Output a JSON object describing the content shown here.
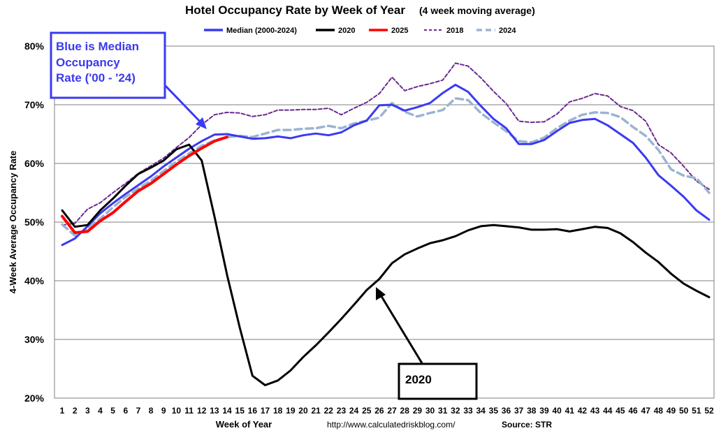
{
  "chart_data": {
    "type": "line",
    "title": "Hotel Occupancy Rate by  Week of Year",
    "subtitle": "(4 week moving average)",
    "xlabel": "Week of Year",
    "ylabel": "4-Week Average Occupancy Rate",
    "ylim": [
      20,
      80
    ],
    "yticks": [
      "20%",
      "30%",
      "40%",
      "50%",
      "60%",
      "70%",
      "80%"
    ],
    "x": [
      1,
      2,
      3,
      4,
      5,
      6,
      7,
      8,
      9,
      10,
      11,
      12,
      13,
      14,
      15,
      16,
      17,
      18,
      19,
      20,
      21,
      22,
      23,
      24,
      25,
      26,
      27,
      28,
      29,
      30,
      31,
      32,
      33,
      34,
      35,
      36,
      37,
      38,
      39,
      40,
      41,
      42,
      43,
      44,
      45,
      46,
      47,
      48,
      49,
      50,
      51,
      52
    ],
    "grid": true,
    "legend_position": "top",
    "series": [
      {
        "name": "Median (2000-2024)",
        "color": "#3a3af0",
        "style": "solid",
        "values": [
          46.1,
          47.2,
          49.3,
          51.5,
          53.2,
          54.8,
          56.3,
          57.8,
          59.5,
          61.0,
          62.5,
          63.8,
          64.9,
          65.0,
          64.6,
          64.2,
          64.3,
          64.6,
          64.3,
          64.8,
          65.1,
          64.8,
          65.3,
          66.5,
          67.3,
          69.9,
          70.0,
          69.0,
          69.6,
          70.3,
          72.0,
          73.4,
          72.2,
          69.8,
          67.6,
          66.0,
          63.3,
          63.3,
          64.0,
          65.5,
          66.9,
          67.4,
          67.6,
          66.5,
          65.0,
          63.5,
          61.0,
          58.0,
          56.2,
          54.3,
          52.0,
          50.4
        ]
      },
      {
        "name": "2020",
        "color": "#000000",
        "style": "solid",
        "values": [
          52.0,
          49.2,
          49.5,
          52.0,
          54.0,
          56.2,
          58.2,
          59.3,
          60.5,
          62.4,
          63.2,
          60.5,
          51.0,
          41.0,
          32.0,
          23.8,
          22.2,
          23.0,
          24.7,
          27.0,
          29.0,
          31.2,
          33.5,
          35.9,
          38.4,
          40.3,
          43.0,
          44.5,
          45.5,
          46.4,
          46.9,
          47.6,
          48.6,
          49.3,
          49.5,
          49.3,
          49.1,
          48.7,
          48.7,
          48.8,
          48.4,
          48.8,
          49.2,
          49.0,
          48.1,
          46.6,
          44.8,
          43.2,
          41.2,
          39.5,
          38.3,
          37.2
        ]
      },
      {
        "name": "2025",
        "color": "#ff0000",
        "style": "solid",
        "values": [
          51.0,
          48.2,
          48.4,
          50.2,
          51.6,
          53.5,
          55.3,
          56.6,
          58.2,
          59.8,
          61.3,
          62.6,
          63.8,
          64.5,
          null,
          null,
          null,
          null,
          null,
          null,
          null,
          null,
          null,
          null,
          null,
          null,
          null,
          null,
          null,
          null,
          null,
          null,
          null,
          null,
          null,
          null,
          null,
          null,
          null,
          null,
          null,
          null,
          null,
          null,
          null,
          null,
          null,
          null,
          null,
          null,
          null,
          null
        ]
      },
      {
        "name": "2018",
        "color": "#6a2a90",
        "style": "dashed",
        "values": [
          49.5,
          49.8,
          52.2,
          53.3,
          55.0,
          56.6,
          58.3,
          59.6,
          60.9,
          62.7,
          64.4,
          66.6,
          68.3,
          68.7,
          68.6,
          68.0,
          68.3,
          69.1,
          69.1,
          69.2,
          69.2,
          69.4,
          68.3,
          69.4,
          70.4,
          71.9,
          74.7,
          72.4,
          73.1,
          73.6,
          74.2,
          77.1,
          76.6,
          74.6,
          72.3,
          70.2,
          67.2,
          67.0,
          67.1,
          68.4,
          70.5,
          71.1,
          71.9,
          71.5,
          69.7,
          69.0,
          67.2,
          63.2,
          61.8,
          59.5,
          57.0,
          55.6
        ]
      },
      {
        "name": "2024",
        "color": "#9ab4d2",
        "style": "dashed",
        "values": [
          49.6,
          47.7,
          48.9,
          50.6,
          52.5,
          54.3,
          55.7,
          57.1,
          58.7,
          60.3,
          61.7,
          63.0,
          63.9,
          64.5,
          64.7,
          64.5,
          65.1,
          65.7,
          65.7,
          65.9,
          66.0,
          66.4,
          66.0,
          66.8,
          67.3,
          67.8,
          70.3,
          68.8,
          68.0,
          68.6,
          69.1,
          71.1,
          70.8,
          68.6,
          67.0,
          65.5,
          63.8,
          63.6,
          64.4,
          66.0,
          67.3,
          68.3,
          68.7,
          68.6,
          67.9,
          66.2,
          64.7,
          62.3,
          59.0,
          57.9,
          57.5,
          55.0
        ]
      }
    ],
    "annotations": [
      {
        "text_lines": [
          "Blue is Median",
          "Occupancy",
          "Rate ('00 - '24)"
        ],
        "color": "#3a3af0",
        "points_to_week": 12.7
      },
      {
        "text": "2020",
        "color": "#000000",
        "points_to_week": 26
      }
    ]
  },
  "footer": {
    "url": "http://www.calculatedriskblog.com/",
    "source": "Source: STR"
  }
}
